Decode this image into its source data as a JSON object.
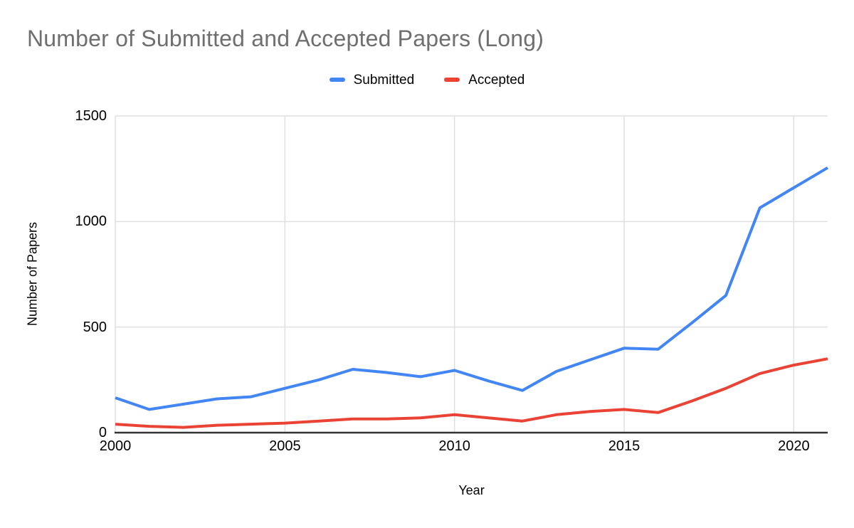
{
  "chart_data": {
    "type": "line",
    "title": "Number of Submitted and Accepted Papers (Long)",
    "xlabel": "Year",
    "ylabel": "Number of Papers",
    "x": [
      2000,
      2001,
      2002,
      2003,
      2004,
      2005,
      2006,
      2007,
      2008,
      2009,
      2010,
      2011,
      2012,
      2013,
      2014,
      2015,
      2016,
      2017,
      2018,
      2019,
      2020,
      2021
    ],
    "series": [
      {
        "name": "Submitted",
        "color": "#4285F4",
        "values": [
          165,
          110,
          135,
          160,
          170,
          210,
          250,
          300,
          285,
          265,
          295,
          245,
          200,
          290,
          345,
          400,
          395,
          520,
          650,
          1065,
          1160,
          1255
        ]
      },
      {
        "name": "Accepted",
        "color": "#EA4335",
        "values": [
          40,
          30,
          25,
          35,
          40,
          45,
          55,
          65,
          65,
          70,
          85,
          70,
          55,
          85,
          100,
          110,
          95,
          150,
          210,
          280,
          320,
          350
        ]
      }
    ],
    "xlim": [
      2000,
      2021
    ],
    "ylim": [
      0,
      1500
    ],
    "xticks": [
      2000,
      2005,
      2010,
      2015,
      2020
    ],
    "yticks": [
      0,
      500,
      1000,
      1500
    ],
    "grid": true,
    "legend_position": "top",
    "colors": {
      "title_text": "#6f6f6f",
      "tick_text": "#000000",
      "grid": "#e0e0e0",
      "axis": "#333333",
      "background": "#ffffff"
    }
  }
}
